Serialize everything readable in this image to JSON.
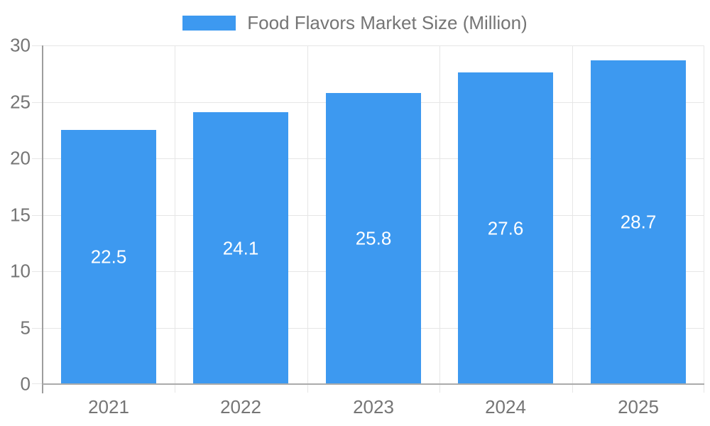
{
  "chart_data": {
    "type": "bar",
    "categories": [
      "2021",
      "2022",
      "2023",
      "2024",
      "2025"
    ],
    "series": [
      {
        "name": "Food Flavors Market Size (Million)",
        "values": [
          22.5,
          24.1,
          25.8,
          27.6,
          28.7
        ]
      }
    ],
    "title": "",
    "xlabel": "",
    "ylabel": "",
    "ylim": [
      0,
      30
    ],
    "yticks": [
      0,
      5,
      10,
      15,
      20,
      25,
      30
    ],
    "grid": true,
    "legend_position": "top-center",
    "value_labels_position": "inside-center"
  },
  "colors": {
    "bar": "#3d99f0",
    "bar_label": "#ffffff",
    "axis_text": "#757575",
    "legend_text": "#757575",
    "gridline": "#e6e6e6",
    "axis_line": "#9e9e9e",
    "baseline": "#ababab",
    "background": "#ffffff"
  }
}
